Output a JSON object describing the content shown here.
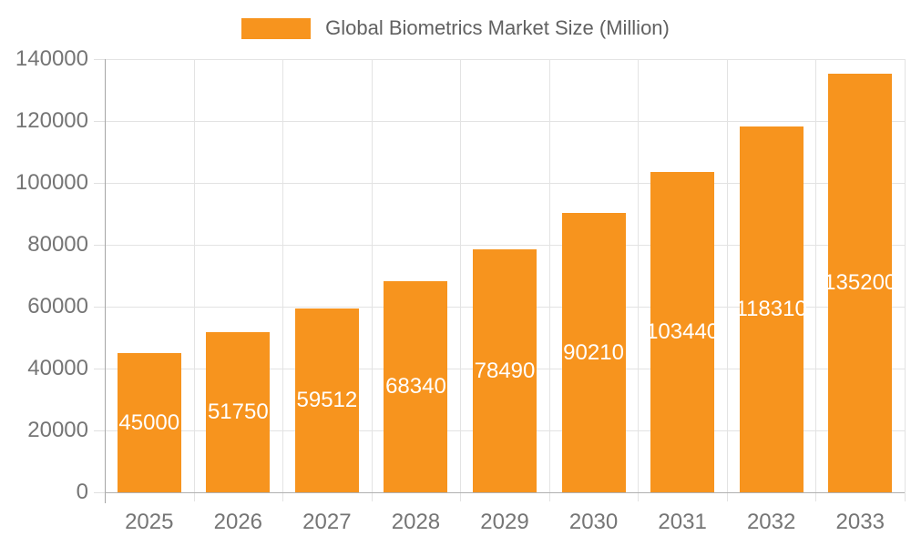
{
  "chart_data": {
    "type": "bar",
    "title": "Global Biometrics Market Size (Million)",
    "categories": [
      "2025",
      "2026",
      "2027",
      "2028",
      "2029",
      "2030",
      "2031",
      "2032",
      "2033"
    ],
    "values": [
      45000,
      51750,
      59512,
      68340,
      78490,
      90210,
      103440,
      118310,
      135200
    ],
    "xlabel": "",
    "ylabel": "",
    "ylim": [
      0,
      140000
    ],
    "ytick_interval": 20000,
    "yticks": [
      "0",
      "20000",
      "40000",
      "60000",
      "80000",
      "100000",
      "120000",
      "140000"
    ],
    "grid": true,
    "legend_position": "top",
    "bar_labels_visible": true
  },
  "style": {
    "bar_color": "#F7941E",
    "bar_label_color": "#FFFFFF",
    "axis_label_color": "#757575",
    "legend_text_color": "#616161",
    "grid_color": "#E3E3E3",
    "tick_color": "#E0E0E0",
    "y_axis_color": "#A6A6A6",
    "x_axis_color": "#B0B0B0",
    "background": "#FFFFFF"
  }
}
